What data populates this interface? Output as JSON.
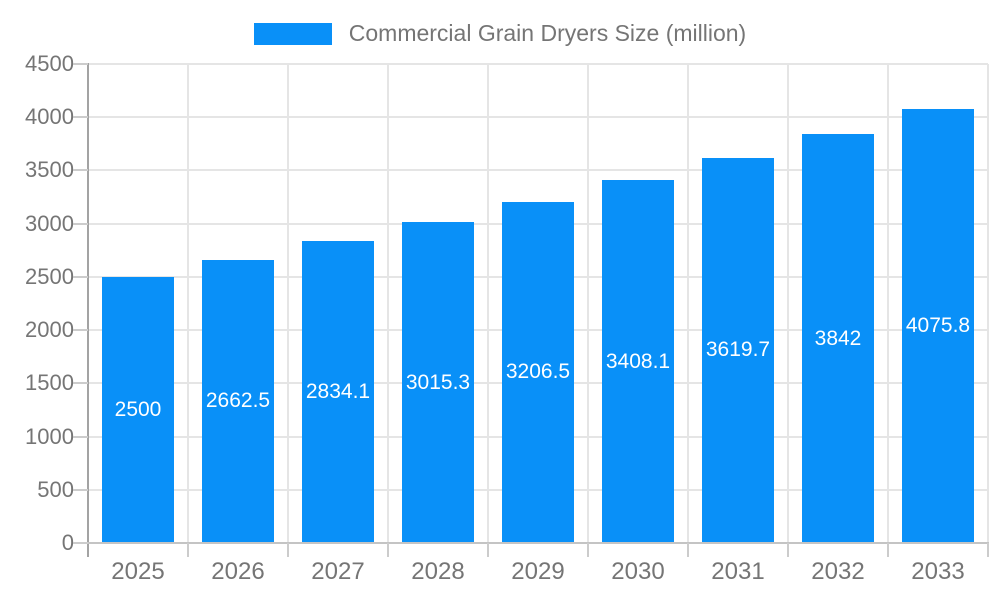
{
  "legend": {
    "label": "Commercial Grain Dryers Size (million)"
  },
  "chart_data": {
    "type": "bar",
    "title": "Commercial Grain Dryers Size (million)",
    "series_name": "Commercial Grain Dryers Size (million)",
    "categories": [
      "2025",
      "2026",
      "2027",
      "2028",
      "2029",
      "2030",
      "2031",
      "2032",
      "2033"
    ],
    "values": [
      2500,
      2662.5,
      2834.1,
      3015.3,
      3206.5,
      3408.1,
      3619.7,
      3842,
      4075.8
    ],
    "value_labels": [
      "2500",
      "2662.5",
      "2834.1",
      "3015.3",
      "3206.5",
      "3408.1",
      "3619.7",
      "3842",
      "4075.8"
    ],
    "xlabel": "",
    "ylabel": "",
    "ylim": [
      0,
      4500
    ],
    "y_ticks": [
      0,
      500,
      1000,
      1500,
      2000,
      2500,
      3000,
      3500,
      4000,
      4500
    ],
    "grid": true,
    "legend_position": "top-center",
    "colors": {
      "bar": "#0990f8",
      "value_label": "#ffffff",
      "axis_text": "#757575",
      "grid_line": "#e5e5e5",
      "axis_line": "#a3a3a3",
      "tick_line": "#cccccc",
      "baseline": "#c4c4c4",
      "background": "#ffffff"
    }
  }
}
